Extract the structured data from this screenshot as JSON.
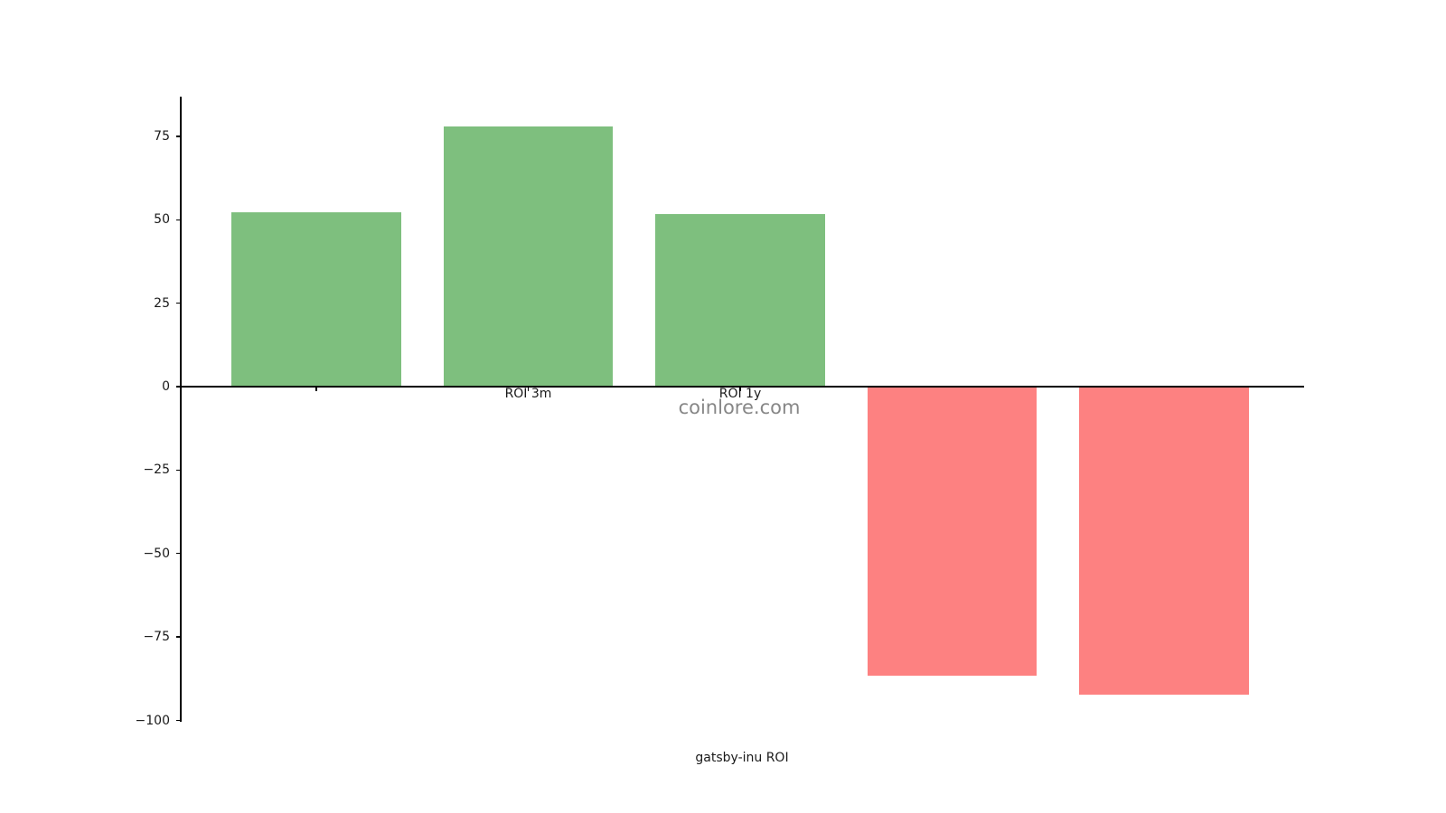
{
  "page": {
    "background": "#ffffff"
  },
  "watermark": {
    "text": "coinlore.com",
    "color": "#878787"
  },
  "chart_data": {
    "type": "bar",
    "title": "",
    "xlabel": "gatsby-inu ROI",
    "ylabel": "",
    "categories": [
      "",
      "ROI 3m",
      "ROI 1y",
      "",
      ""
    ],
    "values": [
      52.1,
      77.9,
      51.7,
      -86.7,
      -92.3
    ],
    "bar_colors": [
      "#7ebf7e",
      "#7ebf7e",
      "#7ebf7e",
      "#fd8181",
      "#fd8181"
    ],
    "positive_color": "#7ebf7e",
    "negative_color": "#fd8181",
    "y_ticks": [
      75,
      50,
      25,
      0,
      -25,
      -50,
      -75,
      -100
    ],
    "y_tick_labels": [
      "75",
      "50",
      "25",
      "0",
      "−25",
      "−50",
      "−75",
      "−100"
    ],
    "ylim": [
      -100.4,
      86.9
    ],
    "xlim": [
      -0.64,
      4.66
    ],
    "bar_width_fraction": 0.8,
    "grid": false,
    "legend_position": "none",
    "axis_color": "#000000",
    "text_color": "#1a1a1a"
  }
}
